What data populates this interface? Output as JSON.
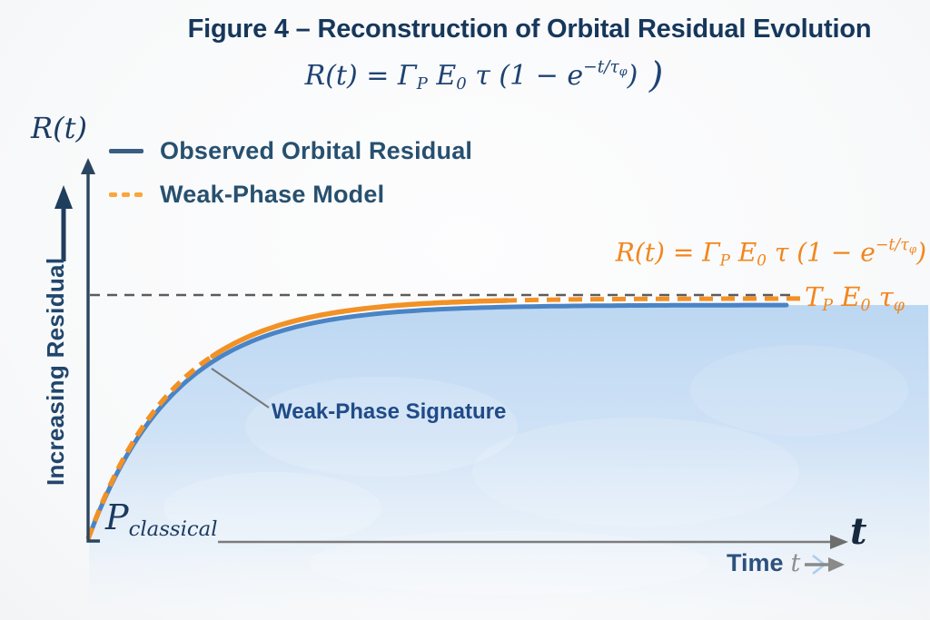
{
  "figure": {
    "title": "Figure 4 – Reconstruction of Orbital Residual Evolution",
    "y_axis_symbol": "R(t)",
    "x_axis_symbol": "t",
    "y_axis_label": "Increasing Residual",
    "x_axis_label_word": "Time",
    "x_axis_label_var": "t",
    "annotation": "Weak-Phase Signature"
  },
  "legend": {
    "items": [
      {
        "label": "Observed Orbital Residual",
        "style": "solid",
        "color": "#3a5d82"
      },
      {
        "label": "Weak-Phase Model",
        "style": "dashed",
        "color": "#f9a63a"
      }
    ]
  },
  "formulas": {
    "main": [
      {
        "k": "n",
        "v": "R(t) = Γ"
      },
      {
        "k": "sub",
        "v": "P"
      },
      {
        "k": "n",
        "v": " E"
      },
      {
        "k": "sub",
        "v": "0"
      },
      {
        "k": "n",
        "v": " τ (1 − e"
      },
      {
        "k": "sup",
        "v": "−t/τ"
      },
      {
        "k": "ssub",
        "v": "φ"
      },
      {
        "k": "n",
        "v": ")"
      },
      {
        "k": "big",
        "v": " )"
      }
    ],
    "model": [
      {
        "k": "n",
        "v": "R(t) = Γ"
      },
      {
        "k": "sub",
        "v": "P"
      },
      {
        "k": "n",
        "v": " E"
      },
      {
        "k": "sub",
        "v": "0"
      },
      {
        "k": "n",
        "v": " τ (1 − e"
      },
      {
        "k": "sup",
        "v": "−t/τ"
      },
      {
        "k": "ssub",
        "v": "φ"
      },
      {
        "k": "n",
        "v": ")"
      }
    ],
    "asymptote": [
      {
        "k": "n",
        "v": "T"
      },
      {
        "k": "sub",
        "v": "P"
      },
      {
        "k": "n",
        "v": " E"
      },
      {
        "k": "sub",
        "v": "0"
      },
      {
        "k": "n",
        "v": " τ"
      },
      {
        "k": "sub",
        "v": "φ"
      }
    ],
    "origin": [
      {
        "k": "n",
        "v": "P"
      },
      {
        "k": "sub",
        "v": "classical"
      }
    ]
  },
  "chart_data": {
    "type": "line",
    "title": "Figure 4 – Reconstruction of Orbital Residual Evolution",
    "equation": "R(t) = Γ_P E_0 τ (1 − e^(−t/τ_φ))",
    "xlabel": "Time t",
    "ylabel": "Increasing Residual",
    "x_axis_symbol": "t",
    "y_axis_symbol": "R(t)",
    "origin_label": "P_classical",
    "asymptote_label": "T_P E_0 τ_φ",
    "asymptote_value_normalized": 1.0,
    "gridlines": false,
    "ticks": "none (qualitative sketch)",
    "legend_position": "top-left",
    "x_range_normalized": [
      0,
      1
    ],
    "series": [
      {
        "name": "Observed Orbital Residual",
        "style": "solid",
        "color": "#4a84c5",
        "form": "saturating-exponential",
        "saturation": 1.0,
        "tau": 0.123,
        "fill_under": "#bdd8f2"
      },
      {
        "name": "Weak-Phase Model",
        "style": "dashed",
        "color": "#f29125",
        "form": "saturating-exponential",
        "saturation": 1.028,
        "tau": 0.122,
        "fill_under": "none"
      }
    ],
    "annotations": [
      {
        "text": "Weak-Phase Signature",
        "attach_normalized_x": 0.17
      }
    ]
  }
}
